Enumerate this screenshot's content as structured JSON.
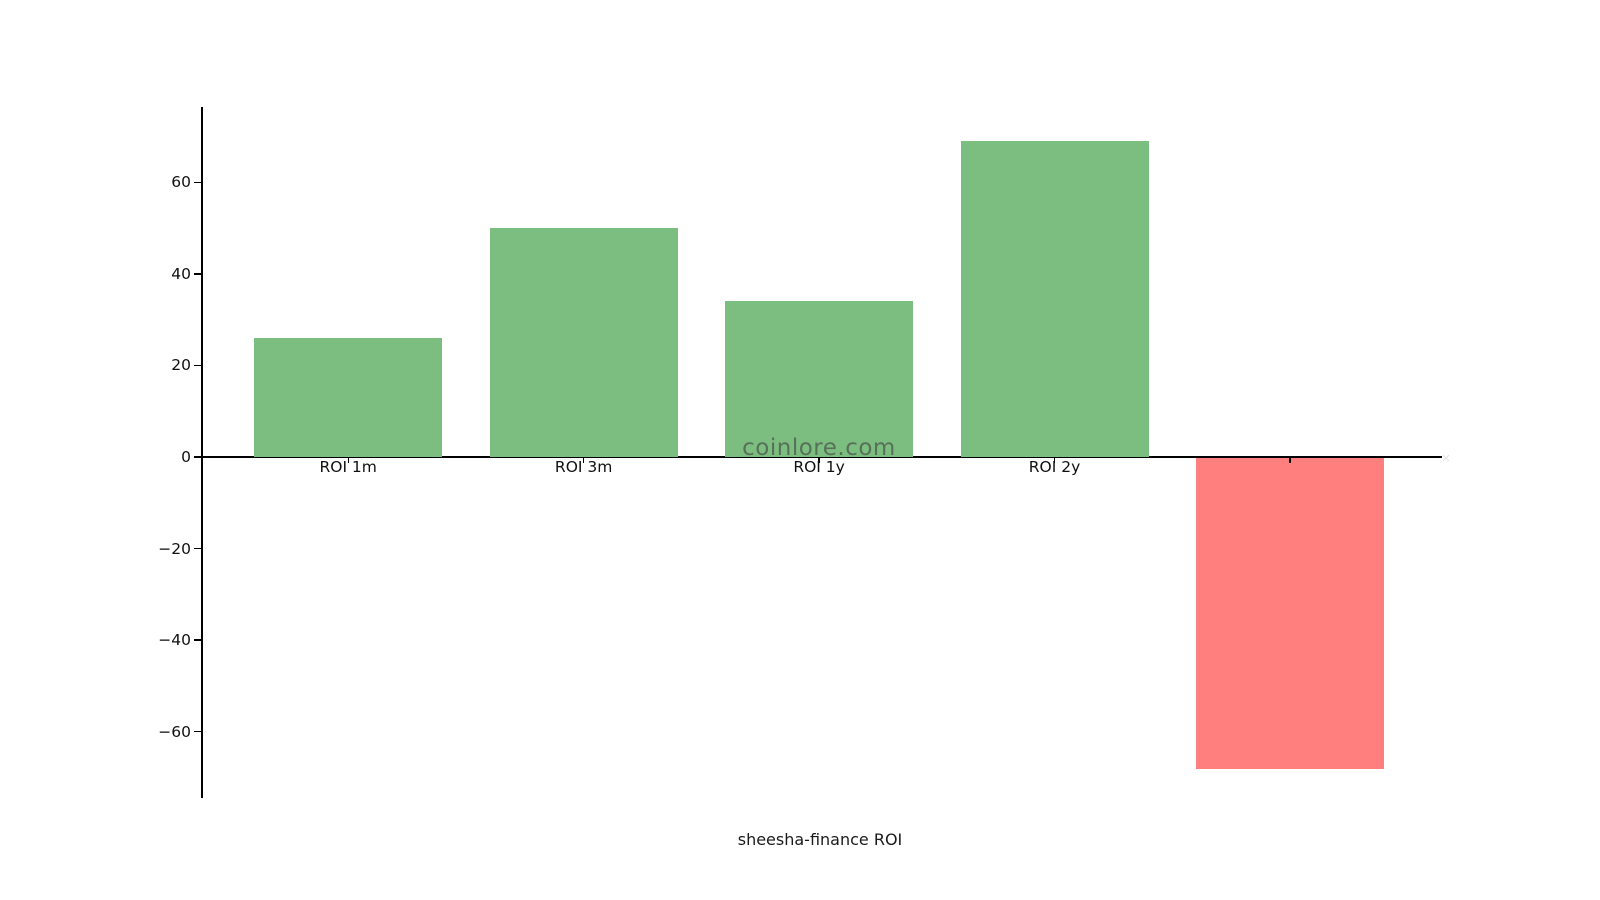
{
  "chart": {
    "title": "sheesha-finance ROI",
    "watermark": "coinlore.com"
  },
  "chart_data": {
    "type": "bar",
    "title": "sheesha-finance ROI",
    "xlabel": "",
    "ylabel": "",
    "categories": [
      "ROI 1m",
      "ROI 3m",
      "ROI 1y",
      "ROI 2y",
      ""
    ],
    "values": [
      26,
      50,
      34,
      69,
      -68
    ],
    "yticks": [
      60,
      40,
      20,
      0,
      -20,
      -40,
      -60
    ],
    "ylim": [
      -74.5,
      76.5
    ],
    "grid": false,
    "legend": false,
    "positive_color": "#7cbe80",
    "negative_color": "#ff7f7f",
    "watermark": "coinlore.com"
  }
}
